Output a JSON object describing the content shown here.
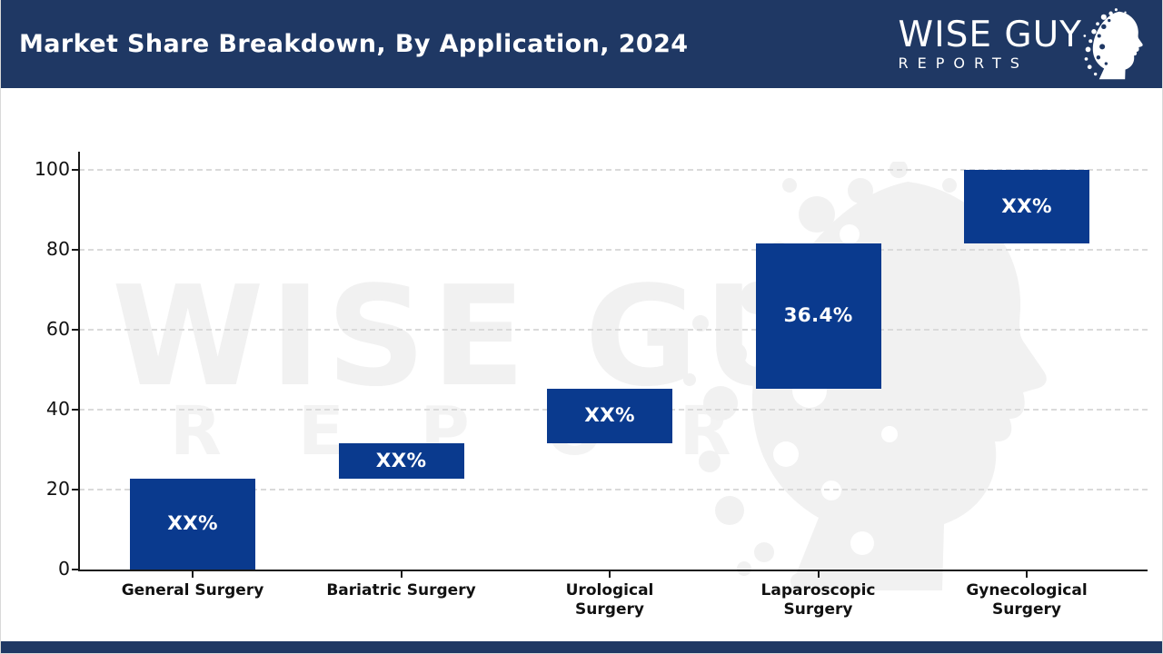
{
  "header": {
    "title": "Market Share Breakdown, By Application, 2024",
    "bg_color": "#1f3864",
    "logo": {
      "line1": "WISE GUY",
      "line2": "REPORTS"
    }
  },
  "watermark": {
    "line1": "WISE GUY",
    "line2": "REPORTS"
  },
  "footer": {
    "bg_color": "#1f3864"
  },
  "chart_data": {
    "type": "bar",
    "subtype": "waterfall",
    "title": "Market Share Breakdown, By Application, 2024",
    "categories": [
      "General Surgery",
      "Bariatric Surgery",
      "Urological Surgery",
      "Laparoscopic Surgery",
      "Gynecological Surgery"
    ],
    "bars": [
      {
        "category": "General Surgery",
        "start": 0,
        "end": 22.7,
        "label": "XX%"
      },
      {
        "category": "Bariatric Surgery",
        "start": 22.7,
        "end": 31.6,
        "label": "XX%"
      },
      {
        "category": "Urological Surgery",
        "start": 31.6,
        "end": 45.2,
        "label": "XX%"
      },
      {
        "category": "Laparoscopic Surgery",
        "start": 45.2,
        "end": 81.6,
        "label": "36.4%"
      },
      {
        "category": "Gynecological Surgery",
        "start": 81.6,
        "end": 100,
        "label": "XX%"
      }
    ],
    "ylim": [
      0,
      100
    ],
    "yticks": [
      0,
      20,
      40,
      60,
      80,
      100
    ],
    "grid": "horizontal-dashed",
    "legend": "none",
    "bar_color": "#0a3a8e",
    "value_label_color": "#ffffff",
    "axis_color": "#1a1a1a",
    "gridline_color": "#dadada"
  }
}
